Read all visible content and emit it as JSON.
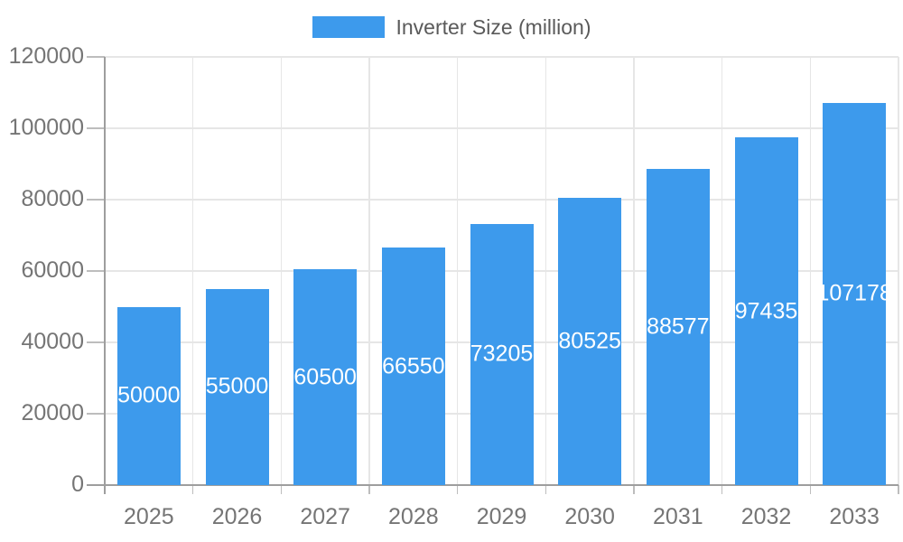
{
  "chart_data": {
    "type": "bar",
    "title": "",
    "legend": {
      "label": "Inverter Size (million)",
      "position": "top"
    },
    "categories": [
      "2025",
      "2026",
      "2027",
      "2028",
      "2029",
      "2030",
      "2031",
      "2032",
      "2033"
    ],
    "series": [
      {
        "name": "Inverter Size (million)",
        "values": [
          50000,
          55000,
          60500,
          66550,
          73205,
          80525,
          88577,
          97435,
          107178
        ]
      }
    ],
    "xlabel": "",
    "ylabel": "",
    "ylim": [
      0,
      120000
    ],
    "y_ticks": [
      0,
      20000,
      40000,
      60000,
      80000,
      100000,
      120000
    ],
    "grid": true,
    "value_labels": "inside-center",
    "colors": {
      "bar": "#3D9AEC",
      "gridline": "#E6E6E6",
      "axis_line": "#9E9E9E",
      "tick": "#BDBDBD",
      "axis_text": "#757575",
      "value_label_text": "#FFFFFF",
      "legend_text": "#5A5A5A",
      "background": "#FFFFFF"
    }
  }
}
